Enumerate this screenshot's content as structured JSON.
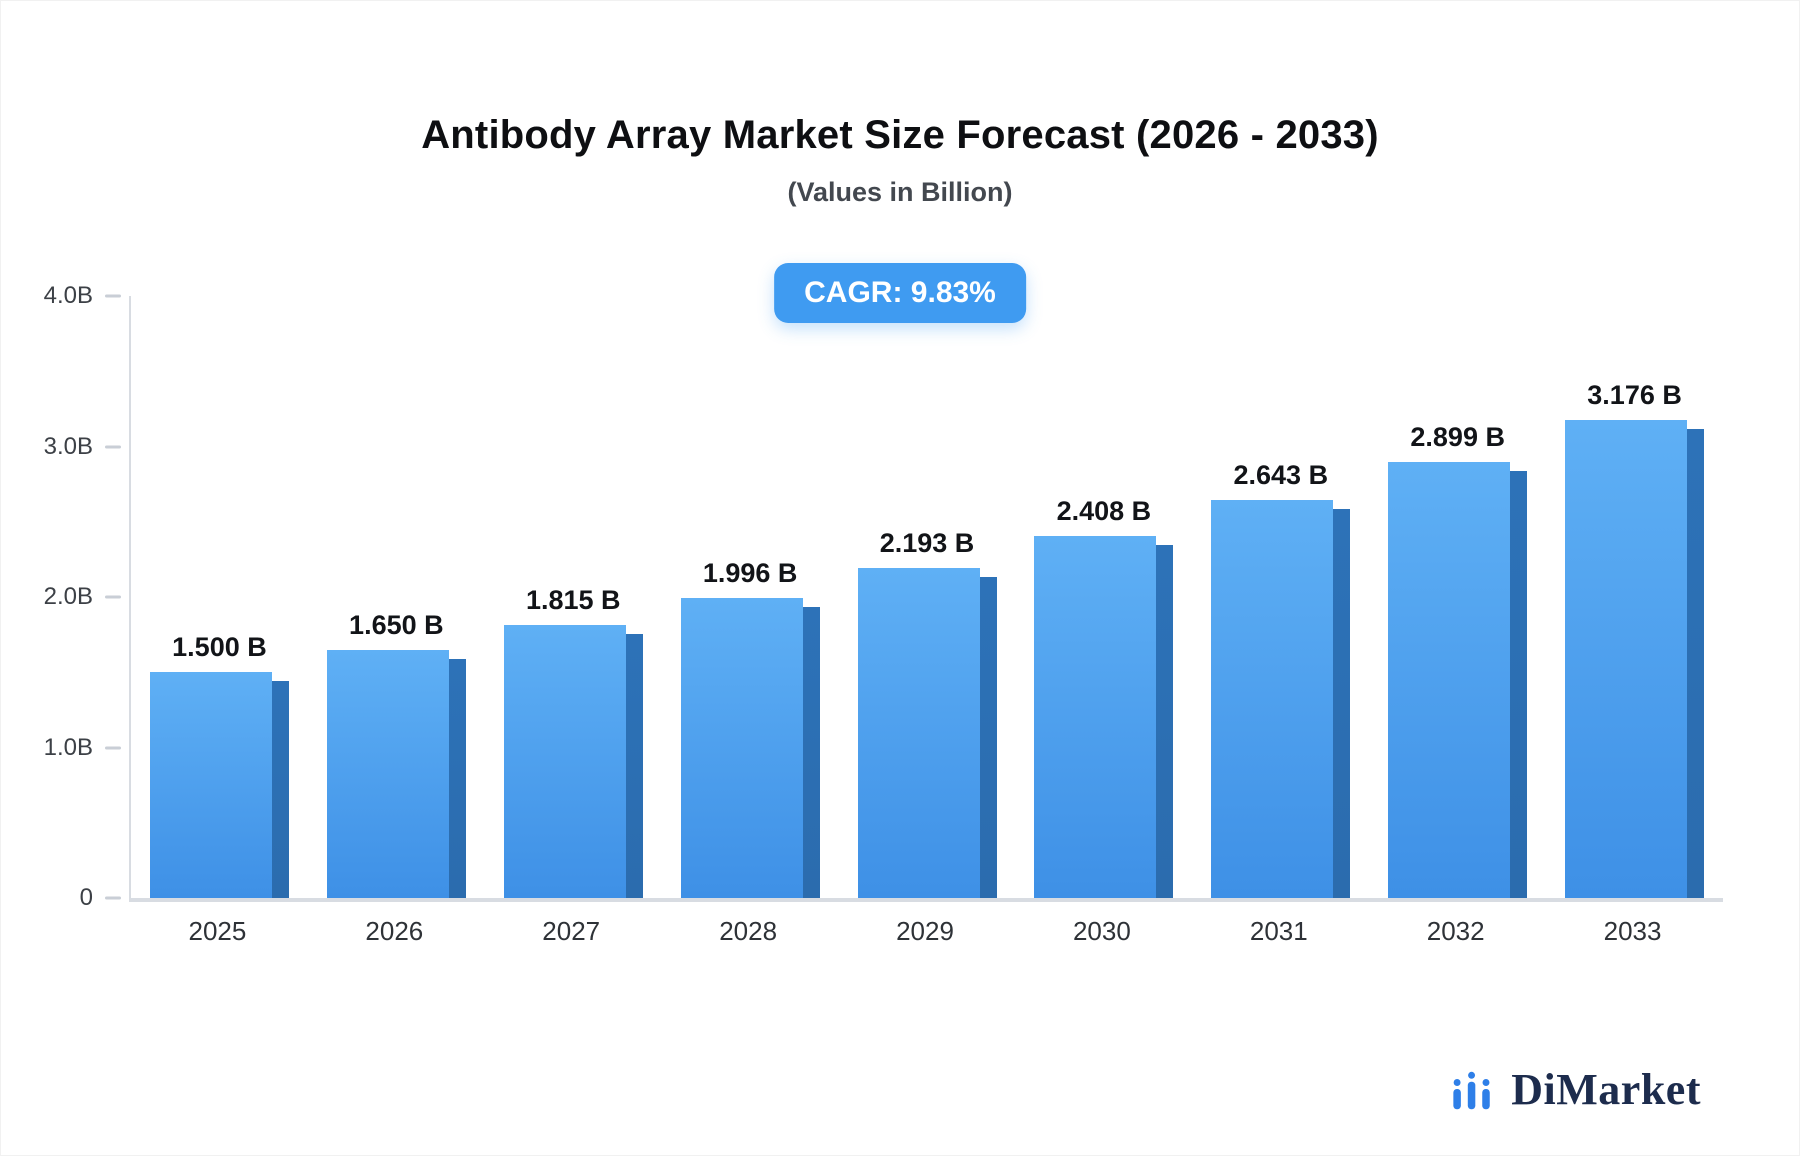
{
  "chart_data": {
    "type": "bar",
    "title": "Antibody Array Market Size Forecast (2026 - 2033)",
    "subtitle": "(Values in Billion)",
    "cagr_badge": "CAGR: 9.83%",
    "categories": [
      "2025",
      "2026",
      "2027",
      "2028",
      "2029",
      "2030",
      "2031",
      "2032",
      "2033"
    ],
    "values": [
      1.5,
      1.65,
      1.815,
      1.996,
      2.193,
      2.408,
      2.643,
      2.899,
      3.176
    ],
    "value_labels": [
      "1.500 B",
      "1.650 B",
      "1.815 B",
      "1.996 B",
      "2.193 B",
      "2.408 B",
      "2.643 B",
      "2.899 B",
      "3.176 B"
    ],
    "xlabel": "",
    "ylabel": "",
    "ylim": [
      0,
      4.0
    ],
    "yticks": [
      {
        "v": 0,
        "label": "0"
      },
      {
        "v": 1,
        "label": "1.0B"
      },
      {
        "v": 2,
        "label": "2.0B"
      },
      {
        "v": 3,
        "label": "3.0B"
      },
      {
        "v": 4,
        "label": "4.0B"
      }
    ],
    "grid": false,
    "legend_position": "none",
    "colors": {
      "bar_top": "#5fb0f5",
      "bar_bottom": "#3e90e6",
      "bar_side": "#2d72b8",
      "badge_bg": "#3f9bf1",
      "badge_text": "#ffffff",
      "axis": "#d8dce2"
    }
  },
  "branding": {
    "name": "DiMarket",
    "icon": "bar-chart-icon",
    "text_color": "#1d2c4d",
    "icon_color": "#2e7fe8"
  }
}
